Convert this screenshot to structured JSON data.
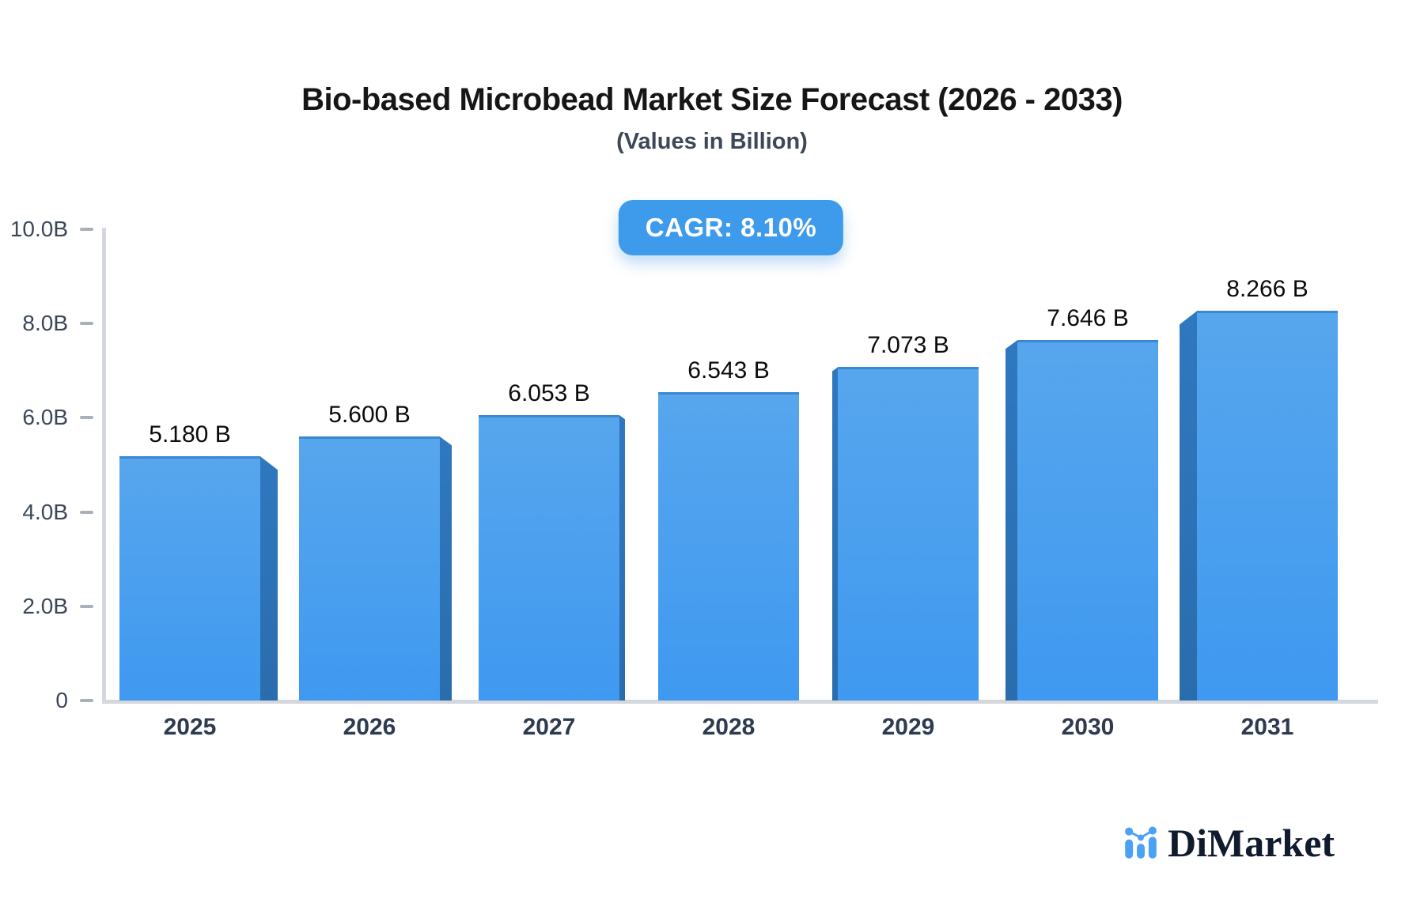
{
  "chart_data": {
    "type": "bar",
    "title": "Bio-based Microbead Market Size Forecast (2026 - 2033)",
    "subtitle": "(Values in Billion)",
    "cagr_label": "CAGR: 8.10%",
    "categories": [
      "2025",
      "2026",
      "2027",
      "2028",
      "2029",
      "2030",
      "2031"
    ],
    "values": [
      5.18,
      5.6,
      6.053,
      6.543,
      7.073,
      7.646,
      8.266
    ],
    "value_labels": [
      "5.180 B",
      "5.600 B",
      "6.053 B",
      "6.543 B",
      "7.073 B",
      "7.646 B",
      "8.266 B"
    ],
    "xlabel": "",
    "ylabel": "",
    "ylim": [
      0,
      10
    ],
    "y_ticks": [
      "10.0B",
      "8.0B",
      "6.0B",
      "4.0B",
      "2.0B",
      "0"
    ],
    "y_tick_values": [
      10,
      8,
      6,
      4,
      2,
      0
    ],
    "grid": false,
    "legend": false,
    "style": "3d-perspective-bars"
  },
  "branding": {
    "name": "DiMarket"
  },
  "colors": {
    "background": "#ffffff",
    "title": "#161616",
    "subtitle": "#3d4757",
    "badge_bg": "#3e9bec",
    "badge_text": "#ffffff",
    "bar_face_top": "#57a6ed",
    "bar_face_bottom": "#3f99f0",
    "bar_side_top": "#2f78c0",
    "bar_side_bottom": "#2a6dad",
    "bar_top_edge": "#3a88cf",
    "axis_line": "#d4d7db",
    "tick_dash": "#aab0b8",
    "y_label": "#3b4759",
    "x_label": "#2e3a50",
    "value_label": "#0b0b0b",
    "logo_text": "#101b2e",
    "logo_accent": "#4aa2f5"
  }
}
